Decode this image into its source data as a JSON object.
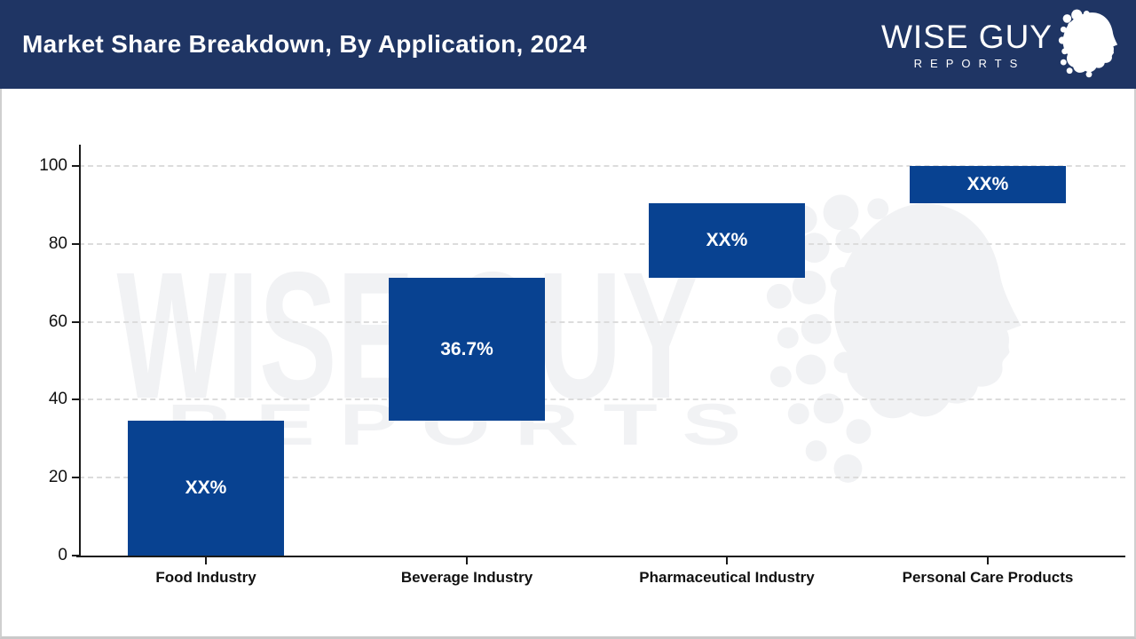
{
  "header": {
    "title": "Market Share Breakdown, By Application, 2024",
    "logo": {
      "line1": "WISE GUY",
      "line2": "REPORTS"
    }
  },
  "watermark": {
    "line1": "WISE GUY",
    "line2": "R E P O R T S"
  },
  "colors": {
    "header_bg": "#1f3564",
    "bar": "#084291",
    "grid": "#dcdcdc",
    "axis": "#1a1a1a",
    "watermark": "#f1f2f4"
  },
  "chart_data": {
    "type": "bar",
    "subtype": "waterfall",
    "title": "Market Share Breakdown, By Application, 2024",
    "categories": [
      "Food Industry",
      "Beverage Industry",
      "Pharmaceutical Industry",
      "Personal Care Products"
    ],
    "series": [
      {
        "name": "Market share (%)",
        "segments": [
          {
            "category": "Food Industry",
            "start": 0,
            "end": 34.6,
            "label": "XX%"
          },
          {
            "category": "Beverage Industry",
            "start": 34.6,
            "end": 71.3,
            "label": "36.7%"
          },
          {
            "category": "Pharmaceutical Industry",
            "start": 71.3,
            "end": 90.4,
            "label": "XX%"
          },
          {
            "category": "Personal Care Products",
            "start": 90.4,
            "end": 100,
            "label": "XX%"
          }
        ]
      }
    ],
    "xlabel": "",
    "ylabel": "",
    "ylim": [
      0,
      100
    ],
    "yticks": [
      0,
      20,
      40,
      60,
      80,
      100
    ],
    "grid": "horizontal-dashed",
    "legend": false,
    "bar_color": "#084291"
  }
}
